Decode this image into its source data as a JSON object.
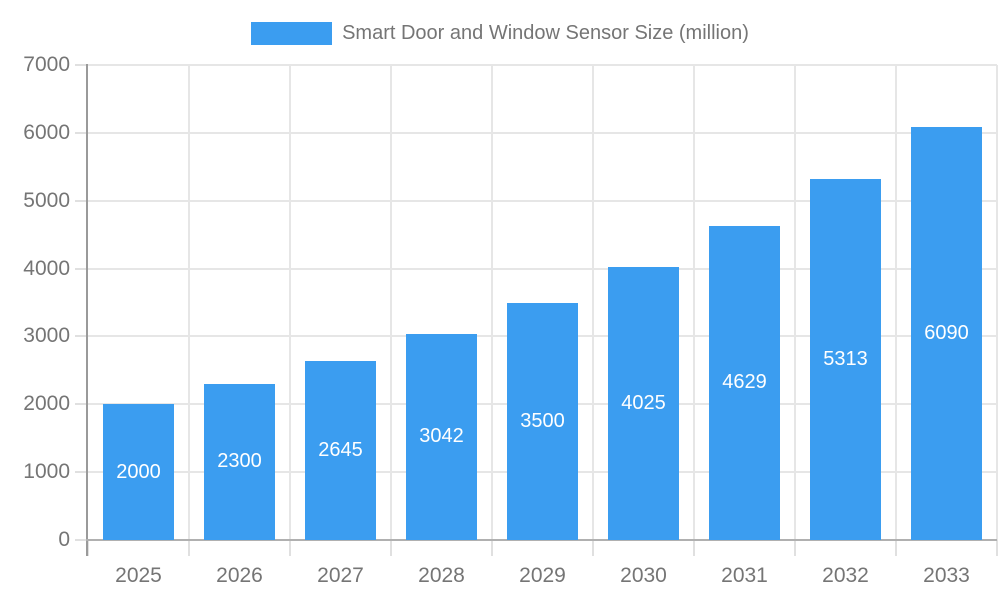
{
  "legend": {
    "swatch_color": "#3b9df0"
  },
  "chart_data": {
    "type": "bar",
    "title": "Smart Door and Window Sensor Size (million)",
    "categories": [
      "2025",
      "2026",
      "2027",
      "2028",
      "2029",
      "2030",
      "2031",
      "2032",
      "2033"
    ],
    "values": [
      2000,
      2300,
      2645,
      3042,
      3500,
      4025,
      4629,
      5313,
      6090
    ],
    "xlabel": "",
    "ylabel": "",
    "ylim": [
      0,
      7000
    ],
    "ytick_step": 1000,
    "yticks": [
      "0",
      "1000",
      "2000",
      "3000",
      "4000",
      "5000",
      "6000",
      "7000"
    ],
    "grid": true,
    "legend_position": "top",
    "bar_color": "#3b9df0",
    "value_label_color": "#ffffff",
    "axis_text_color": "#757575"
  }
}
